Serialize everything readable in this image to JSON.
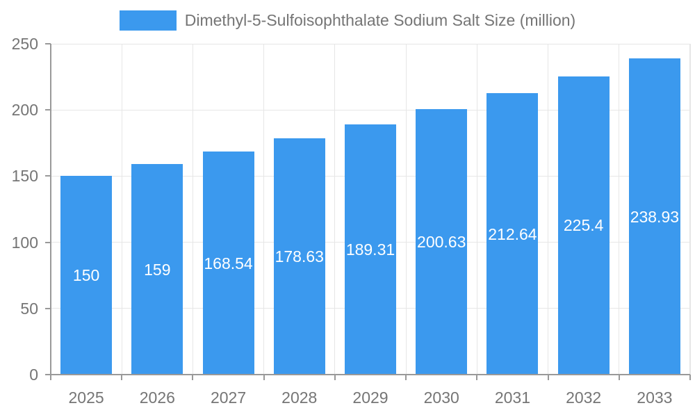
{
  "legend": {
    "series_label": "Dimethyl-5-Sulfoisophthalate Sodium Salt Size (million)"
  },
  "chart_data": {
    "type": "bar",
    "title": "Dimethyl-5-Sulfoisophthalate Sodium Salt Size (million)",
    "categories": [
      "2025",
      "2026",
      "2027",
      "2028",
      "2029",
      "2030",
      "2031",
      "2032",
      "2033"
    ],
    "values": [
      150,
      159,
      168.54,
      178.63,
      189.31,
      200.63,
      212.64,
      225.4,
      238.93
    ],
    "value_labels": [
      "150",
      "159",
      "168.54",
      "178.63",
      "189.31",
      "200.63",
      "212.64",
      "225.4",
      "238.93"
    ],
    "xlabel": "",
    "ylabel": "",
    "ylim": [
      0,
      250
    ],
    "y_ticks": [
      0,
      50,
      100,
      150,
      200,
      250
    ],
    "grid": true,
    "legend_position": "top",
    "value_label_position": "inside-middle",
    "colors": {
      "bar": "#3B99EE",
      "value_label": "#FFFFFF",
      "axis_line": "#999999",
      "grid_line": "#E6E6E6",
      "text": "#757575"
    }
  }
}
